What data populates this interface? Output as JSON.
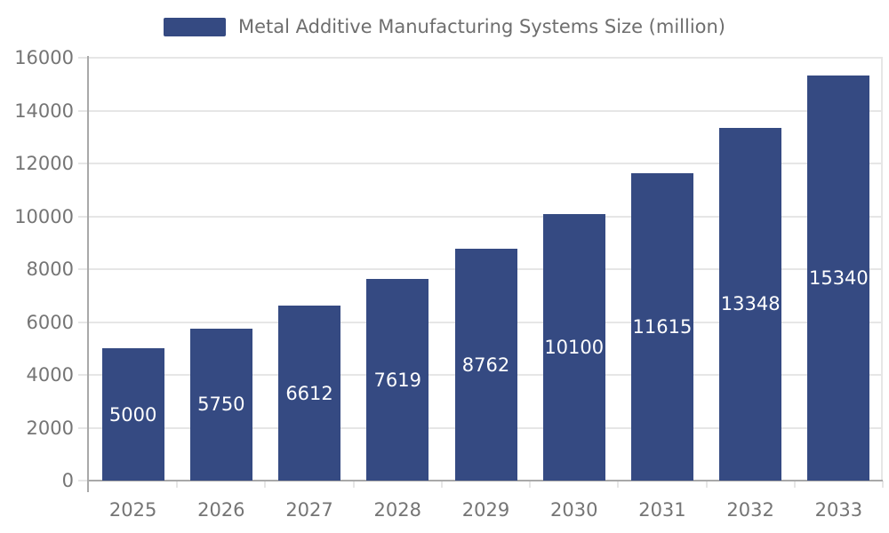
{
  "legend": {
    "label": "Metal Additive Manufacturing Systems Size (million)"
  },
  "colors": {
    "bar": "#354a82",
    "grid": "#e6e6e6",
    "axis": "#a9a9a9",
    "tick_label": "#757575",
    "value_label": "#ffffff",
    "legend_text": "#6e6e6e",
    "background": "#ffffff"
  },
  "chart_data": {
    "type": "bar",
    "title": "Metal Additive Manufacturing Systems Size (million)",
    "categories": [
      "2025",
      "2026",
      "2027",
      "2028",
      "2029",
      "2030",
      "2031",
      "2032",
      "2033"
    ],
    "values": [
      5000,
      5750,
      6612,
      7619,
      8762,
      10100,
      11615,
      13348,
      15340
    ],
    "xlabel": "",
    "ylabel": "",
    "ylim": [
      0,
      16000
    ],
    "yticks": [
      0,
      2000,
      4000,
      6000,
      8000,
      10000,
      12000,
      14000,
      16000
    ],
    "grid": true,
    "legend_position": "top",
    "bar_value_labels": true
  }
}
